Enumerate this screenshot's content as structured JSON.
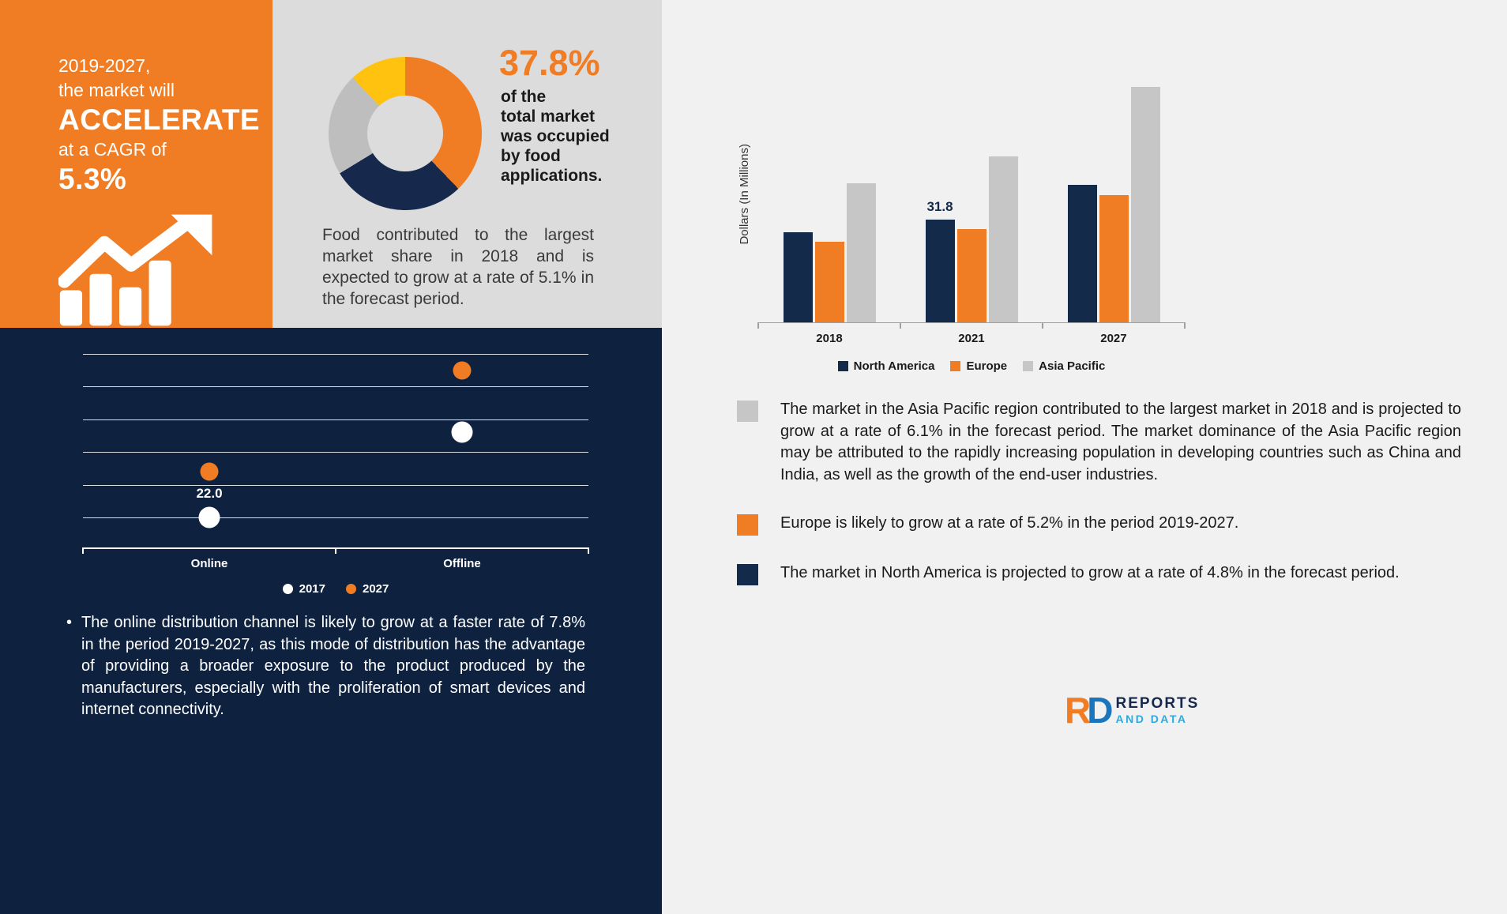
{
  "colors": {
    "orange": "#F07C23",
    "navy_panel": "#0E2240",
    "panel_gray": "#DCDCDC",
    "panel_light": "#F1F1F1",
    "bar_navy": "#132A4A",
    "bar_gray": "#C6C6C6",
    "donut_yellow": "#FFC20E",
    "white": "#FFFFFF",
    "logo_light_blue": "#29ABE2",
    "logo_dark_navy": "#16294C"
  },
  "cagr_panel": {
    "line1": "2019-2027,",
    "line2": "the market will",
    "accelerate": "ACCELERATE",
    "line3": "at a CAGR of",
    "cagr_value": "5.3%"
  },
  "food_panel": {
    "stat_value": "37.8%",
    "stat_lines": [
      "of the",
      "total market",
      "was occupied",
      "by food",
      "applications."
    ],
    "body": "Food contributed to the largest market share in 2018 and is expected to grow at a rate of 5.1% in the forecast period."
  },
  "distribution_panel": {
    "bullet_glyph": "•",
    "bullet": "The online distribution channel is likely to grow at a faster rate of 7.8% in the period 2019-2027, as this mode of distribution has the advantage of providing a broader exposure to the product produced by the manufacturers, especially with the proliferation of smart devices and internet connectivity."
  },
  "regional_panel": {
    "bullets": [
      {
        "color": "#C6C6C6",
        "region": "Asia Pacific",
        "text": "The market in the Asia Pacific region contributed to the largest market in 2018 and is projected to grow at a rate of 6.1% in the forecast period. The market dominance of the Asia Pacific region may be attributed to the rapidly increasing population in developing countries such as China and India, as well as the growth of the end-user industries."
      },
      {
        "color": "#F07C23",
        "region": "Europe",
        "text": "Europe is likely to grow at a rate of 5.2% in the period 2019-2027."
      },
      {
        "color": "#132A4A",
        "region": "North America",
        "text": "The market in North America is projected to grow at a rate of 4.8% in the forecast period."
      }
    ]
  },
  "logo": {
    "mark_r": "R",
    "mark_d": "D",
    "name_top": "REPORTS",
    "name_bottom": "AND DATA"
  },
  "chart_data": [
    {
      "type": "pie",
      "title": "Share of total market by application",
      "labels": [
        "Food (labeled 37.8%)",
        "unlabeled segment",
        "unlabeled segment",
        "unlabeled segment"
      ],
      "values": [
        37.8,
        28.5,
        21.7,
        12.0
      ],
      "colors": [
        "#F07C23",
        "#16294C",
        "#BEBEBE",
        "#FFC20E"
      ],
      "donut_hole": 0.5,
      "data_labels": [
        "37.8%"
      ]
    },
    {
      "type": "bar",
      "categories": [
        "2018",
        "2021",
        "2027"
      ],
      "series": [
        {
          "name": "North America",
          "color": "#132A4A",
          "values": [
            28,
            31.8,
            42.5
          ]
        },
        {
          "name": "Europe",
          "color": "#F07C23",
          "values": [
            25,
            29,
            39.5
          ]
        },
        {
          "name": "Asia Pacific",
          "color": "#C6C6C6",
          "values": [
            43,
            51.5,
            73
          ]
        }
      ],
      "ylabel": "Dollars (In Millions)",
      "ylim": [
        0,
        80
      ],
      "grid": false,
      "legend_position": "bottom",
      "data_labels": [
        {
          "series": "North America",
          "category": "2021",
          "text": "31.8"
        }
      ]
    },
    {
      "type": "scatter",
      "categories": [
        "Online",
        "Offline"
      ],
      "series": [
        {
          "name": "2017",
          "color": "#FFFFFF",
          "values": [
            22.0,
            27.2
          ]
        },
        {
          "name": "2027",
          "color": "#F07C23",
          "values": [
            24.8,
            31.0
          ]
        }
      ],
      "ylim": [
        21,
        33
      ],
      "gridline_values": [
        32,
        30,
        28,
        26,
        24,
        22
      ],
      "grid": true,
      "legend_position": "bottom",
      "data_labels": [
        {
          "series": "2017",
          "category": "Online",
          "text": "22.0"
        }
      ]
    }
  ]
}
